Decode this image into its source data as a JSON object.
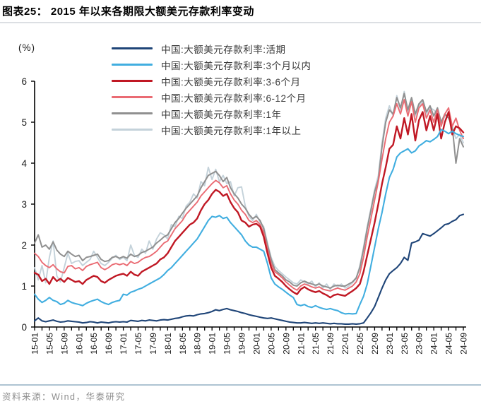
{
  "header": {
    "title": "图表25： 2015 年以来各期限大额美元存款利率变动"
  },
  "footer": {
    "source": "资料来源：Wind，华泰研究"
  },
  "chart_data": {
    "type": "line",
    "title": "2015 年以来各期限大额美元存款利率变动",
    "unit_label": "(%)",
    "xlabel": "",
    "ylabel": "%",
    "ylim": [
      0,
      6
    ],
    "y_ticks": [
      0,
      1,
      2,
      3,
      4,
      5,
      6
    ],
    "grid": false,
    "legend_position": "top-center",
    "x_start": "2015-01",
    "x_end": "2024-09",
    "x_monthly_points": 117,
    "x_minor_tick_every_months": 2,
    "x_label_every_months": 4,
    "x_tick_labels": [
      "15-01",
      "15-05",
      "15-09",
      "16-01",
      "16-05",
      "16-09",
      "17-01",
      "17-05",
      "17-09",
      "18-01",
      "18-05",
      "18-09",
      "19-01",
      "19-05",
      "19-09",
      "20-01",
      "20-05",
      "20-09",
      "21-01",
      "21-05",
      "21-09",
      "22-01",
      "22-05",
      "22-09",
      "23-01",
      "23-05",
      "23-09",
      "24-01",
      "24-05",
      "24-09"
    ],
    "axis_color": "#000000",
    "series": [
      {
        "key": "demand",
        "label": "中国:大额美元存款利率:活期",
        "color": "#1f4578",
        "width": 2.1,
        "values": [
          0.15,
          0.22,
          0.15,
          0.13,
          0.15,
          0.17,
          0.14,
          0.12,
          0.13,
          0.15,
          0.14,
          0.13,
          0.12,
          0.1,
          0.11,
          0.13,
          0.12,
          0.1,
          0.12,
          0.11,
          0.1,
          0.12,
          0.13,
          0.12,
          0.13,
          0.12,
          0.16,
          0.15,
          0.14,
          0.16,
          0.15,
          0.17,
          0.16,
          0.15,
          0.17,
          0.18,
          0.17,
          0.19,
          0.21,
          0.22,
          0.25,
          0.27,
          0.28,
          0.27,
          0.3,
          0.32,
          0.33,
          0.35,
          0.38,
          0.42,
          0.4,
          0.43,
          0.45,
          0.42,
          0.4,
          0.38,
          0.35,
          0.33,
          0.3,
          0.28,
          0.26,
          0.24,
          0.22,
          0.21,
          0.22,
          0.2,
          0.18,
          0.16,
          0.14,
          0.12,
          0.11,
          0.1,
          0.1,
          0.11,
          0.1,
          0.09,
          0.1,
          0.09,
          0.1,
          0.09,
          0.08,
          0.09,
          0.08,
          0.08,
          0.07,
          0.07,
          0.08,
          0.07,
          0.08,
          0.1,
          0.22,
          0.35,
          0.5,
          0.72,
          0.95,
          1.15,
          1.3,
          1.38,
          1.45,
          1.55,
          1.7,
          1.63,
          2.05,
          2.08,
          2.12,
          2.28,
          2.25,
          2.22,
          2.28,
          2.35,
          2.42,
          2.5,
          2.52,
          2.58,
          2.62,
          2.72,
          2.75
        ]
      },
      {
        "key": "under-3m",
        "label": "中国:大额美元存款利率:3个月以内",
        "color": "#41aee0",
        "width": 2.1,
        "values": [
          0.8,
          0.68,
          0.6,
          0.65,
          0.72,
          0.65,
          0.62,
          0.55,
          0.58,
          0.65,
          0.6,
          0.57,
          0.55,
          0.52,
          0.58,
          0.62,
          0.65,
          0.68,
          0.62,
          0.58,
          0.55,
          0.6,
          0.63,
          0.65,
          0.8,
          0.78,
          0.85,
          0.88,
          0.92,
          0.95,
          1.0,
          1.05,
          1.1,
          1.15,
          1.2,
          1.28,
          1.38,
          1.45,
          1.55,
          1.65,
          1.75,
          1.85,
          1.95,
          2.05,
          2.15,
          2.3,
          2.45,
          2.6,
          2.7,
          2.68,
          2.72,
          2.65,
          2.68,
          2.55,
          2.45,
          2.35,
          2.25,
          2.1,
          2.0,
          1.95,
          1.95,
          1.9,
          1.85,
          1.55,
          1.2,
          1.05,
          0.98,
          0.92,
          0.85,
          0.78,
          0.72,
          0.55,
          0.52,
          0.55,
          0.5,
          0.48,
          0.52,
          0.48,
          0.45,
          0.43,
          0.45,
          0.42,
          0.4,
          0.35,
          0.32,
          0.33,
          0.32,
          0.33,
          0.55,
          0.75,
          1.05,
          1.5,
          1.95,
          2.4,
          2.8,
          3.25,
          3.65,
          3.85,
          4.15,
          4.25,
          4.3,
          4.35,
          4.25,
          4.3,
          4.42,
          4.48,
          4.55,
          4.52,
          4.58,
          4.65,
          4.82,
          4.78,
          4.72,
          4.78,
          4.72,
          4.68,
          4.65
        ]
      },
      {
        "key": "3-6m",
        "label": "中国:大额美元存款利率:3-6个月",
        "color": "#c01824",
        "width": 2.4,
        "values": [
          1.32,
          1.28,
          1.12,
          1.18,
          1.05,
          1.22,
          1.12,
          1.18,
          1.1,
          1.2,
          1.15,
          1.1,
          1.12,
          1.05,
          1.15,
          1.2,
          1.25,
          1.22,
          1.12,
          1.08,
          1.15,
          1.2,
          1.25,
          1.28,
          1.3,
          1.25,
          1.35,
          1.28,
          1.25,
          1.35,
          1.4,
          1.45,
          1.5,
          1.55,
          1.65,
          1.7,
          1.8,
          1.95,
          2.1,
          2.2,
          2.3,
          2.4,
          2.5,
          2.55,
          2.65,
          2.85,
          3.0,
          3.1,
          3.25,
          3.35,
          3.3,
          3.2,
          3.25,
          3.05,
          2.9,
          2.8,
          2.6,
          2.55,
          2.45,
          2.5,
          2.52,
          2.45,
          2.2,
          1.8,
          1.45,
          1.25,
          1.18,
          1.1,
          1.0,
          0.92,
          0.85,
          0.8,
          0.92,
          0.98,
          0.92,
          0.88,
          0.85,
          0.88,
          0.82,
          0.78,
          0.72,
          0.78,
          0.8,
          0.78,
          0.76,
          0.82,
          0.88,
          0.95,
          1.05,
          1.35,
          1.75,
          2.15,
          2.55,
          3.0,
          3.5,
          3.9,
          4.35,
          4.45,
          4.9,
          4.6,
          5.1,
          4.7,
          5.2,
          4.55,
          5.05,
          5.25,
          4.8,
          5.15,
          4.8,
          5.2,
          4.6,
          5.0,
          5.25,
          4.7,
          4.9,
          4.85,
          4.75
        ]
      },
      {
        "key": "6-12m",
        "label": "中国:大额美元存款利率:6-12个月",
        "color": "#ea6b73",
        "width": 1.9,
        "values": [
          1.8,
          1.72,
          1.58,
          1.5,
          1.45,
          1.52,
          1.42,
          1.35,
          1.32,
          1.48,
          1.5,
          1.42,
          1.45,
          1.38,
          1.48,
          1.52,
          1.55,
          1.58,
          1.45,
          1.4,
          1.45,
          1.52,
          1.55,
          1.52,
          1.55,
          1.5,
          1.6,
          1.55,
          1.58,
          1.65,
          1.7,
          1.72,
          1.78,
          1.85,
          1.95,
          2.05,
          2.1,
          2.25,
          2.4,
          2.5,
          2.6,
          2.75,
          2.85,
          2.95,
          3.05,
          3.2,
          3.3,
          3.4,
          3.5,
          3.58,
          3.52,
          3.4,
          3.45,
          3.25,
          3.1,
          3.0,
          2.85,
          2.75,
          2.6,
          2.55,
          2.6,
          2.5,
          2.3,
          1.9,
          1.55,
          1.35,
          1.28,
          1.2,
          1.1,
          1.02,
          0.95,
          0.9,
          1.0,
          1.05,
          1.02,
          0.98,
          0.95,
          0.98,
          0.92,
          0.9,
          0.88,
          0.92,
          0.95,
          0.92,
          0.9,
          0.95,
          1.0,
          1.1,
          1.3,
          1.7,
          2.2,
          2.65,
          3.1,
          3.55,
          4.1,
          4.6,
          5.0,
          5.15,
          5.45,
          5.2,
          5.55,
          5.15,
          5.5,
          5.0,
          5.35,
          5.45,
          5.1,
          5.3,
          5.0,
          5.3,
          4.9,
          5.2,
          5.35,
          4.9,
          5.1,
          4.8,
          4.6
        ]
      },
      {
        "key": "1y",
        "label": "中国:大额美元存款利率:1年",
        "color": "#909090",
        "width": 2.0,
        "values": [
          2.05,
          2.25,
          1.95,
          2.0,
          1.9,
          2.08,
          1.88,
          1.78,
          1.72,
          1.85,
          1.78,
          1.72,
          1.75,
          1.62,
          1.7,
          1.72,
          1.75,
          1.78,
          1.65,
          1.6,
          1.62,
          1.7,
          1.72,
          1.68,
          1.72,
          1.68,
          1.78,
          1.72,
          1.75,
          1.82,
          1.85,
          1.9,
          1.95,
          2.05,
          2.12,
          2.2,
          2.25,
          2.4,
          2.55,
          2.65,
          2.78,
          2.9,
          3.0,
          3.1,
          3.2,
          3.4,
          3.55,
          3.7,
          3.75,
          3.8,
          3.7,
          3.55,
          3.65,
          3.4,
          3.25,
          3.15,
          3.0,
          2.9,
          2.75,
          2.65,
          2.7,
          2.6,
          2.4,
          2.0,
          1.65,
          1.4,
          1.32,
          1.25,
          1.15,
          1.1,
          1.02,
          1.0,
          1.08,
          1.12,
          1.08,
          1.05,
          1.02,
          1.05,
          1.0,
          0.98,
          0.95,
          1.0,
          1.02,
          1.0,
          1.0,
          1.05,
          1.1,
          1.2,
          1.45,
          1.9,
          2.4,
          2.85,
          3.3,
          3.6,
          4.4,
          5.0,
          5.3,
          5.2,
          5.6,
          5.35,
          5.7,
          5.3,
          5.6,
          5.2,
          5.45,
          5.55,
          5.25,
          5.4,
          5.15,
          5.35,
          5.0,
          5.2,
          5.1,
          4.9,
          4.0,
          4.6,
          4.4
        ]
      },
      {
        "key": "over-1y",
        "label": "中国:大额美元存款利率:1年以上",
        "color": "#c4d2da",
        "width": 1.9,
        "values": [
          1.45,
          1.15,
          1.5,
          1.08,
          1.7,
          2.1,
          1.25,
          1.1,
          1.45,
          1.8,
          1.55,
          1.6,
          1.62,
          1.5,
          1.58,
          1.65,
          1.85,
          1.7,
          1.55,
          1.5,
          1.58,
          1.68,
          1.75,
          1.65,
          1.7,
          1.62,
          2.0,
          1.75,
          1.7,
          1.9,
          1.8,
          2.1,
          1.9,
          2.15,
          2.3,
          2.25,
          2.15,
          2.5,
          2.45,
          2.7,
          2.65,
          2.95,
          3.05,
          3.25,
          3.15,
          3.55,
          3.45,
          3.9,
          3.6,
          3.85,
          3.55,
          3.7,
          3.5,
          3.55,
          3.2,
          3.4,
          3.42,
          2.95,
          2.7,
          2.6,
          2.75,
          2.55,
          2.45,
          2.05,
          1.7,
          1.48,
          1.38,
          1.3,
          1.22,
          1.15,
          1.08,
          1.05,
          1.15,
          1.1,
          1.05,
          1.12,
          0.98,
          1.08,
          0.95,
          1.05,
          0.92,
          1.05,
          0.98,
          1.05,
          0.95,
          1.0,
          1.08,
          1.18,
          1.5,
          1.95,
          2.45,
          2.9,
          3.35,
          3.7,
          4.5,
          5.1,
          5.4,
          5.15,
          5.65,
          5.3,
          5.75,
          5.25,
          5.55,
          5.15,
          5.4,
          5.5,
          5.2,
          5.35,
          5.3,
          5.2,
          4.95,
          5.15,
          5.2,
          4.85,
          4.6,
          4.7,
          4.5
        ]
      }
    ]
  }
}
